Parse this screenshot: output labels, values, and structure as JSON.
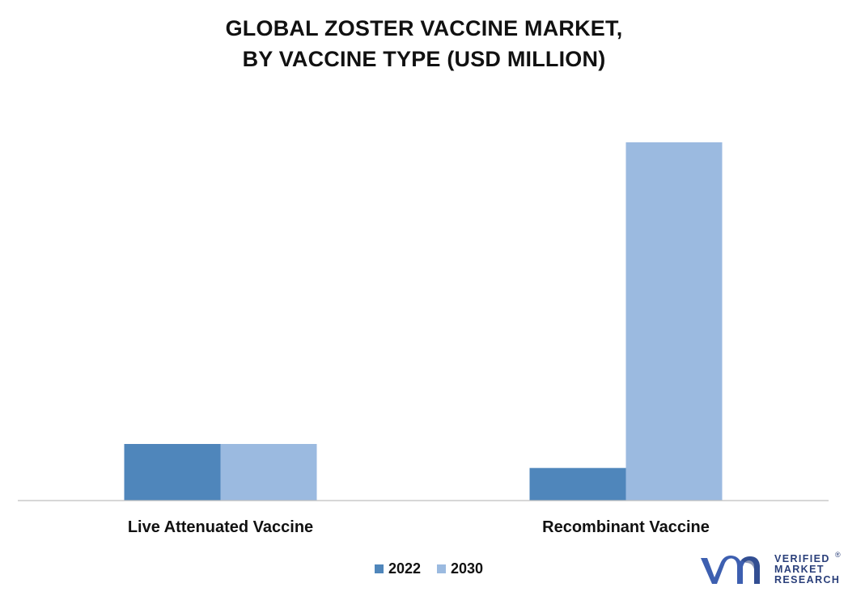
{
  "chart_data": {
    "type": "bar",
    "title": [
      "GLOBAL ZOSTER VACCINE MARKET,",
      "BY VACCINE TYPE (USD MILLION)"
    ],
    "xlabel": "",
    "ylabel": "",
    "categories": [
      "Live Attenuated Vaccine",
      "Recombinant Vaccine"
    ],
    "series": [
      {
        "name": "2022",
        "color": "#4f86bb",
        "values": [
          158,
          91
        ]
      },
      {
        "name": "2030",
        "color": "#9bbae0",
        "values": [
          158,
          1000
        ]
      }
    ],
    "ylim": [
      0,
      1000
    ],
    "grid": false,
    "legend_position": "bottom-center"
  },
  "logo": {
    "icon": "vmr-logo-icon",
    "lines": [
      "VERIFIED",
      "MARKET",
      "RESEARCH"
    ],
    "registered_mark": "®",
    "color": "#2a3f7a"
  }
}
